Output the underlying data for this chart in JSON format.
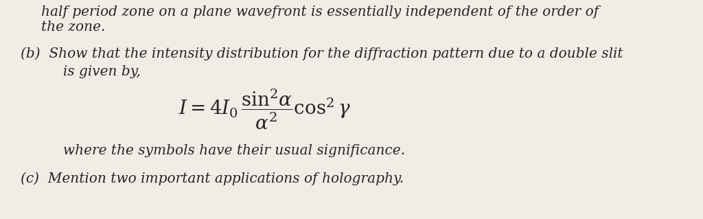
{
  "bg_color": "#f0ede6",
  "text_color": "#2a2420",
  "line1": "half period zone on a plane wavefront is essentially independent of the order of",
  "line2": "the zone.",
  "line_b1": "(b)  Show that the intensity distribution for the diffraction pattern due to a double slit",
  "line_b2": "     is given by,",
  "equation": "$I = 4I_0\\,\\dfrac{\\sin^2\\!\\alpha}{\\alpha^2}\\cos^2\\gamma$",
  "line_b3": "     where the symbols have their usual significance.",
  "line_c": "(c)  Mention two important applications of holography.",
  "fontsize_text": 14.5,
  "fontsize_eq": 20,
  "fig_width": 10.24,
  "fig_height": 3.19,
  "dpi": 100
}
